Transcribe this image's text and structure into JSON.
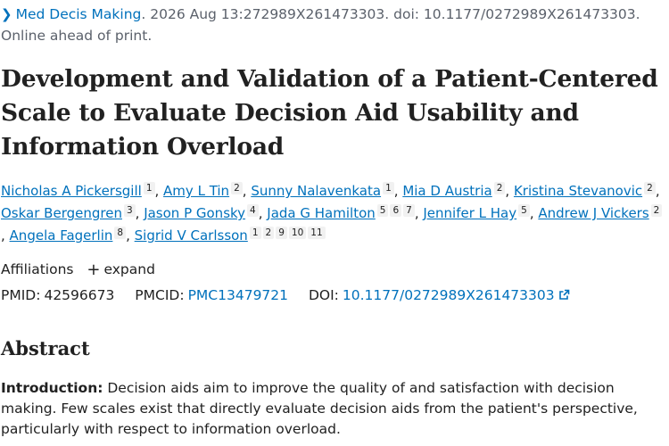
{
  "citation": {
    "journal": "Med Decis Making",
    "details": ". 2026 Aug 13:272989X261473303. doi: 10.1177/0272989X261473303.",
    "status": "Online ahead of print."
  },
  "title": "Development and Validation of a Patient-Centered Scale to Evaluate Decision Aid Usability and Information Overload",
  "authors": [
    {
      "name": "Nicholas A Pickersgill",
      "affs": [
        "1"
      ]
    },
    {
      "name": "Amy L Tin",
      "affs": [
        "2"
      ]
    },
    {
      "name": "Sunny Nalavenkata",
      "affs": [
        "1"
      ]
    },
    {
      "name": "Mia D Austria",
      "affs": [
        "2"
      ]
    },
    {
      "name": "Kristina Stevanovic",
      "affs": [
        "2"
      ]
    },
    {
      "name": "Oskar Bergengren",
      "affs": [
        "3"
      ]
    },
    {
      "name": "Jason P Gonsky",
      "affs": [
        "4"
      ]
    },
    {
      "name": "Jada G Hamilton",
      "affs": [
        "5",
        "6",
        "7"
      ]
    },
    {
      "name": "Jennifer L Hay",
      "affs": [
        "5"
      ]
    },
    {
      "name": "Andrew J Vickers",
      "affs": [
        "2"
      ]
    },
    {
      "name": "Angela Fagerlin",
      "affs": [
        "8"
      ]
    },
    {
      "name": "Sigrid V Carlsson",
      "affs": [
        "1",
        "2",
        "9",
        "10",
        "11"
      ]
    }
  ],
  "affiliations": {
    "label": "Affiliations",
    "expand": "expand"
  },
  "ids": {
    "pmid_label": "PMID:",
    "pmid": "42596673",
    "pmcid_label": "PMCID:",
    "pmcid": "PMC13479721",
    "doi_label": "DOI:",
    "doi": "10.1177/0272989X261473303"
  },
  "abstract": {
    "heading": "Abstract",
    "intro_label": "Introduction:",
    "intro_text": " Decision aids aim to improve the quality of and satisfaction with decision making. Few scales exist that directly evaluate decision aids from the patient's perspective, particularly with respect to information overload."
  },
  "icons": {
    "chevron": "chevron-right-icon",
    "expand": "plus-icon",
    "external": "external-link-icon"
  },
  "colors": {
    "link": "#0071bc",
    "text": "#212121",
    "muted": "#5b616b",
    "badge": "#f1f1f1"
  }
}
